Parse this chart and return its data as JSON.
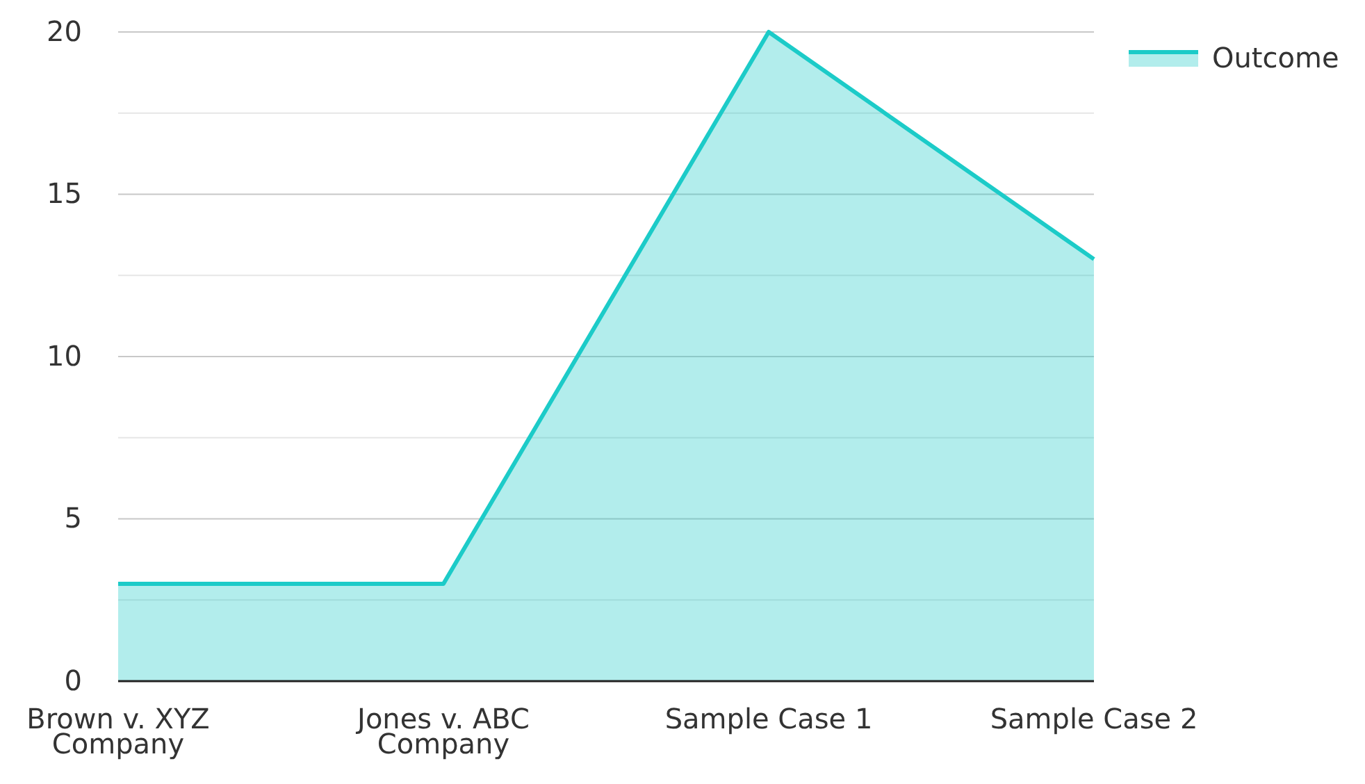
{
  "chart_data": {
    "type": "area",
    "categories": [
      "Brown v. XYZ Company",
      "Jones v. ABC Company",
      "Sample Case 1",
      "Sample Case 2"
    ],
    "series": [
      {
        "name": "Outcome",
        "color": "#1ccbc8",
        "values": [
          3,
          3,
          20,
          13
        ]
      }
    ],
    "ylim": [
      0,
      20
    ],
    "yticks": [
      0,
      {
        "value": 2.5,
        "label": null
      },
      5,
      {
        "value": 7.5,
        "label": null
      },
      10,
      {
        "value": 12.5,
        "label": null
      },
      15,
      {
        "value": 17.5,
        "label": null
      },
      20
    ],
    "grid": "y",
    "legend": "top right"
  }
}
